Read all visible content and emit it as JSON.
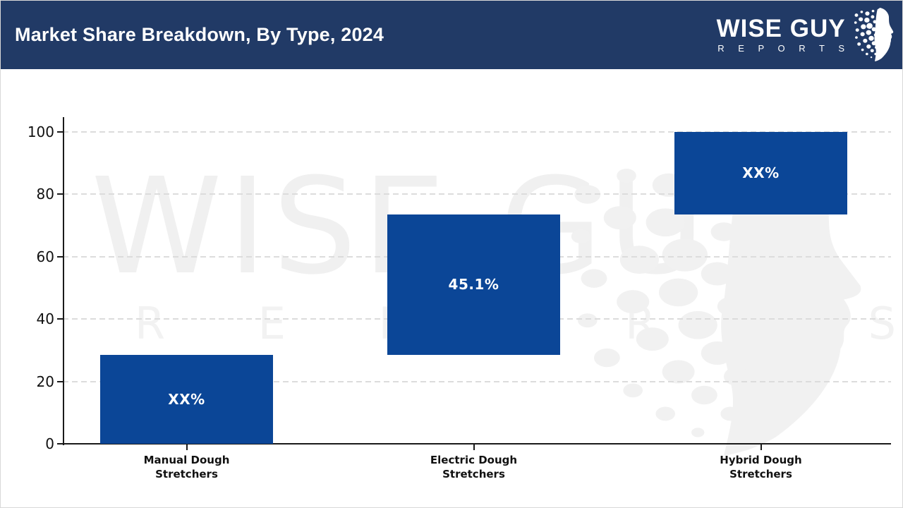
{
  "header": {
    "title": "Market Share Breakdown, By Type, 2024",
    "background_color": "#213a66",
    "logo": {
      "wordmark": "WISE GUY",
      "tagline": "R E P O R T S"
    }
  },
  "watermark": {
    "wordmark": "WISE GUY",
    "tagline": "R E P O R T S"
  },
  "chart_data": {
    "type": "bar",
    "subtype": "floating-segment-waterfall",
    "title": "Market Share Breakdown, By Type, 2024",
    "categories": [
      "Manual Dough Stretchers",
      "Electric Dough Stretchers",
      "Hybrid Dough Stretchers"
    ],
    "segments": [
      {
        "category": "Manual Dough Stretchers",
        "label_lines": [
          "Manual Dough",
          "Stretchers"
        ],
        "start": 0,
        "end": 28.5,
        "value_label": "XX%",
        "approx_value": 28.5
      },
      {
        "category": "Electric Dough Stretchers",
        "label_lines": [
          "Electric Dough",
          "Stretchers"
        ],
        "start": 28.5,
        "end": 73.6,
        "value_label": "45.1%",
        "approx_value": 45.1
      },
      {
        "category": "Hybrid Dough Stretchers",
        "label_lines": [
          "Hybrid Dough",
          "Stretchers"
        ],
        "start": 73.6,
        "end": 100,
        "value_label": "XX%",
        "approx_value": 26.4
      }
    ],
    "xlabel": "",
    "ylabel": "",
    "yticks": [
      0,
      20,
      40,
      60,
      80,
      100
    ],
    "ylim": [
      0,
      105
    ],
    "grid": "horizontal dashed gridlines at y ticks",
    "legend": "none",
    "bar_color": "#0b4697",
    "bar_label_color": "#ffffff",
    "gridline_color": "#dcdcdc",
    "axis_color": "#1a1a1a"
  }
}
